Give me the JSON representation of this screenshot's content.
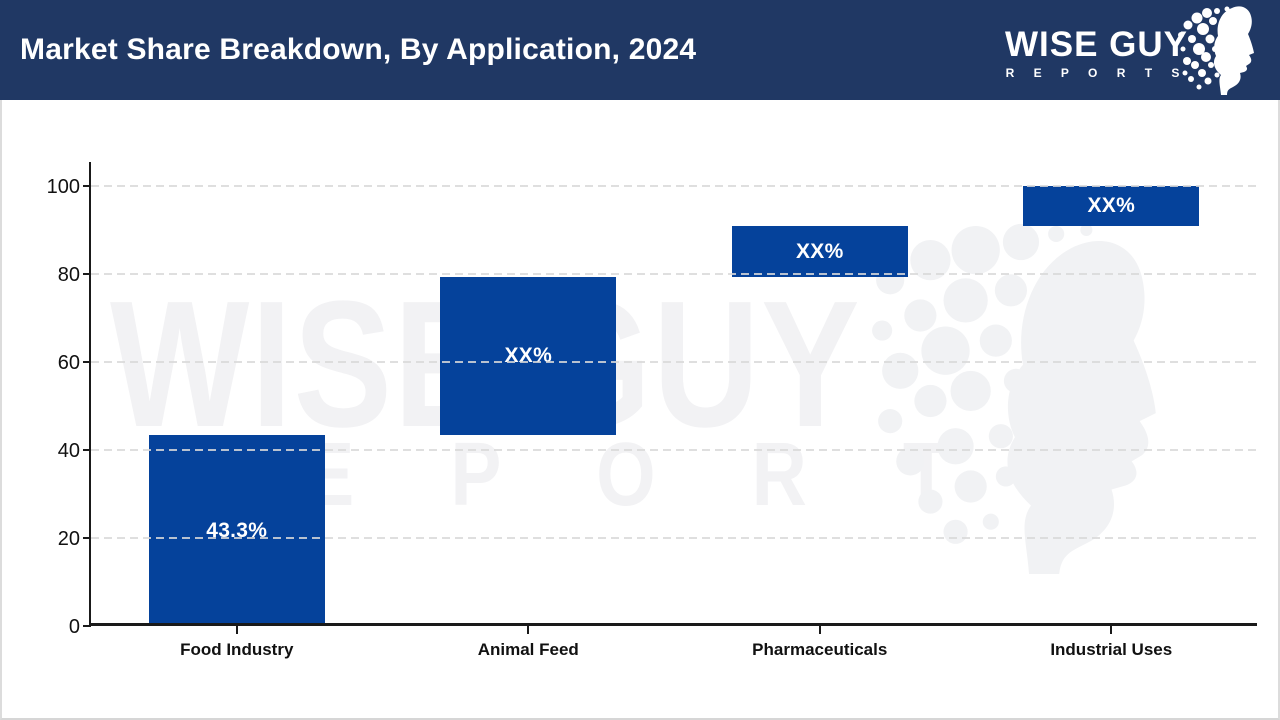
{
  "header": {
    "title": "Market Share Breakdown, By Application, 2024",
    "logo": {
      "line1": "WISE GUY",
      "line2": "R E P O R T S"
    }
  },
  "watermark": {
    "line1": "WISE GUY",
    "line2": "R E P O R T S"
  },
  "colors": {
    "header_bg": "#203864",
    "bar": "#05429b",
    "axis": "#1a1a1a",
    "grid": "#d9d9d9",
    "watermark": "#f2f2f4",
    "bar_label": "#ffffff"
  },
  "chart_data": {
    "type": "bar",
    "subtype": "waterfall",
    "title": "Market Share Breakdown, By Application, 2024",
    "categories": [
      "Food Industry",
      "Animal Feed",
      "Pharmaceuticals",
      "Industrial Uses"
    ],
    "segments": [
      {
        "category": "Food Industry",
        "start": 0,
        "end": 43.3,
        "label": "43.3%"
      },
      {
        "category": "Animal Feed",
        "start": 43.3,
        "end": 79.3,
        "label": "XX%"
      },
      {
        "category": "Pharmaceuticals",
        "start": 79.3,
        "end": 90.9,
        "label": "XX%"
      },
      {
        "category": "Industrial Uses",
        "start": 90.9,
        "end": 100,
        "label": "XX%"
      }
    ],
    "ylim": [
      0,
      100
    ],
    "yticks": [
      0,
      20,
      40,
      60,
      80,
      100
    ],
    "xlabel": "",
    "ylabel": "",
    "grid": "horizontal-dashed",
    "legend": "none"
  }
}
